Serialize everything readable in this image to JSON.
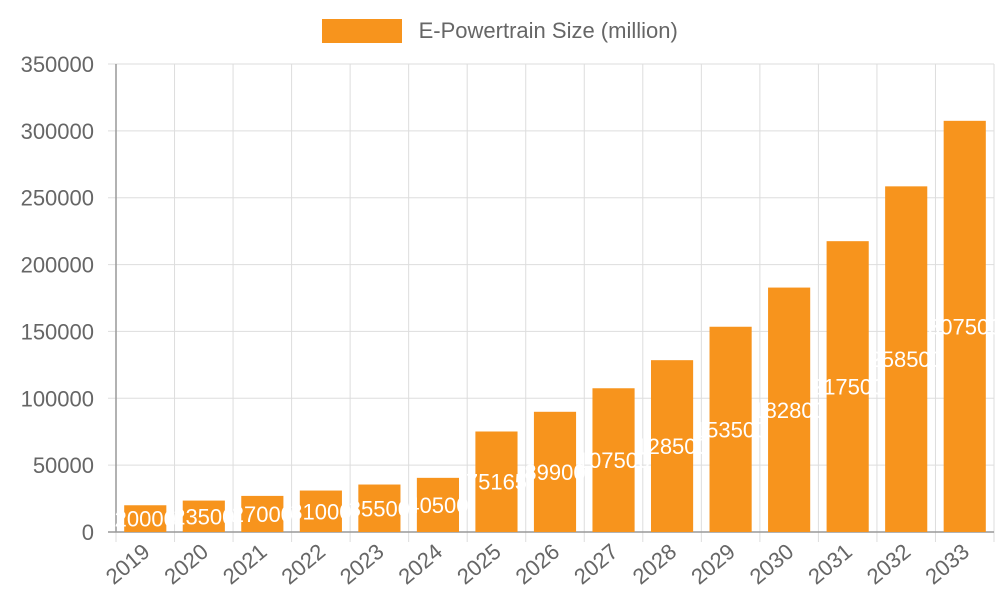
{
  "chart_data": {
    "type": "bar",
    "categories": [
      "2019",
      "2020",
      "2021",
      "2022",
      "2023",
      "2024",
      "2025",
      "2026",
      "2027",
      "2028",
      "2029",
      "2030",
      "2031",
      "2032",
      "2033"
    ],
    "series": [
      {
        "name": "E-Powertrain Size (million)",
        "values": [
          20000,
          23500,
          27000,
          31000,
          35500,
          40500,
          75165,
          89900,
          107500,
          128500,
          153500,
          182800,
          217500,
          258500,
          307500
        ],
        "color": "#f7941d"
      }
    ],
    "value_labels": [
      "20000",
      "23500",
      "27000",
      "31000",
      "35500",
      "40500",
      "75165",
      "89900",
      "107500",
      "128500",
      "153500",
      "182800",
      "217500",
      "258500",
      "307500"
    ],
    "ylim": [
      0,
      350000
    ],
    "yticks": [
      "0",
      "50000",
      "100000",
      "150000",
      "200000",
      "250000",
      "300000",
      "350000"
    ],
    "grid": true,
    "legend_position": "top-center"
  }
}
